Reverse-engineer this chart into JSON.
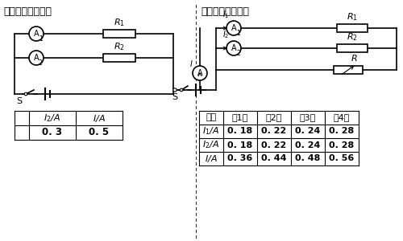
{
  "bg_color": "#ffffff",
  "left_title": "小明的实验及记录",
  "right_title": "冬冬的实验及记录",
  "left_table_row0": [
    "I₂/A",
    "I/A"
  ],
  "left_table_row1": [
    "0.3",
    "0.5"
  ],
  "right_headers": [
    "电流",
    "第1次",
    "第2次",
    "第3次",
    "第4次"
  ],
  "right_rows": [
    [
      "I₁/A",
      "0.18",
      "0.22",
      "0.24",
      "0.28"
    ],
    [
      "I₂/A",
      "0.18",
      "0.22",
      "0.24",
      "0.28"
    ],
    [
      "I/A",
      "0.36",
      "0.44",
      "0.48",
      "0.56"
    ]
  ],
  "lw": 1.2,
  "font_cjk": "Noto Sans CJK SC",
  "font_fallback": "Arial Unicode MS"
}
